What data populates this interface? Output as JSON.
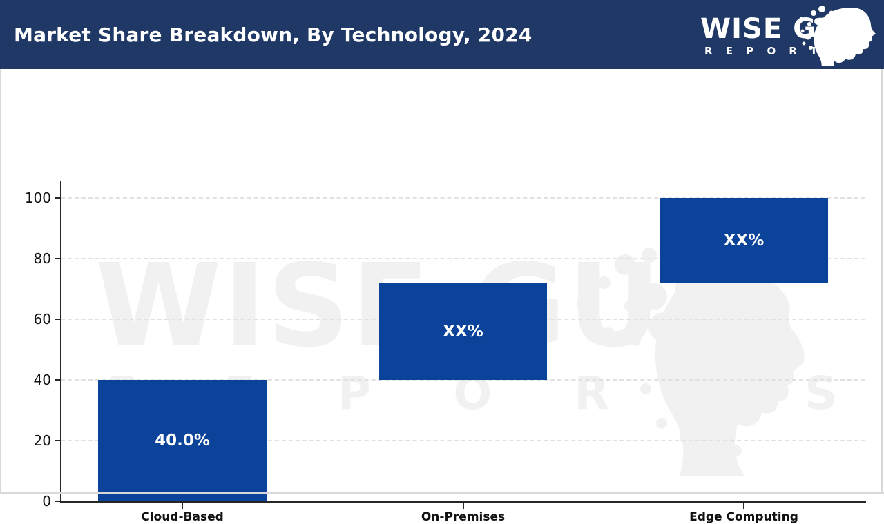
{
  "header": {
    "title": "Market Share Breakdown, By Technology, 2024",
    "logo": {
      "brand_line1": "WISE GUY",
      "brand_line2": "R E P O R T S"
    }
  },
  "watermark": {
    "line1": "WISE GUY",
    "line2": "R E P O R T S"
  },
  "chart_data": {
    "type": "bar",
    "subtype": "waterfall",
    "title": "Market Share Breakdown, By Technology, 2024",
    "categories": [
      "Cloud-Based",
      "On-Premises",
      "Edge Computing"
    ],
    "segments": [
      {
        "category": "Cloud-Based",
        "start": 0,
        "end": 40,
        "value": 40,
        "label": "40.0%"
      },
      {
        "category": "On-Premises",
        "start": 40,
        "end": 72,
        "value": 32,
        "label": "XX%"
      },
      {
        "category": "Edge Computing",
        "start": 72,
        "end": 100,
        "value": 28,
        "label": "XX%"
      }
    ],
    "y_ticks": [
      0,
      20,
      40,
      60,
      80,
      100
    ],
    "ylim": [
      0,
      100
    ],
    "xlabel": "",
    "ylabel": "",
    "legend": "none",
    "grid": "horizontal-dashed",
    "colors": {
      "bar": "#0a4399",
      "bar_label": "#ffffff",
      "axis": "#262626",
      "grid_line": "#e1e1e1",
      "header_bg": "#1f3865",
      "header_text": "#ffffff",
      "watermark": "#f1f1f1"
    }
  }
}
